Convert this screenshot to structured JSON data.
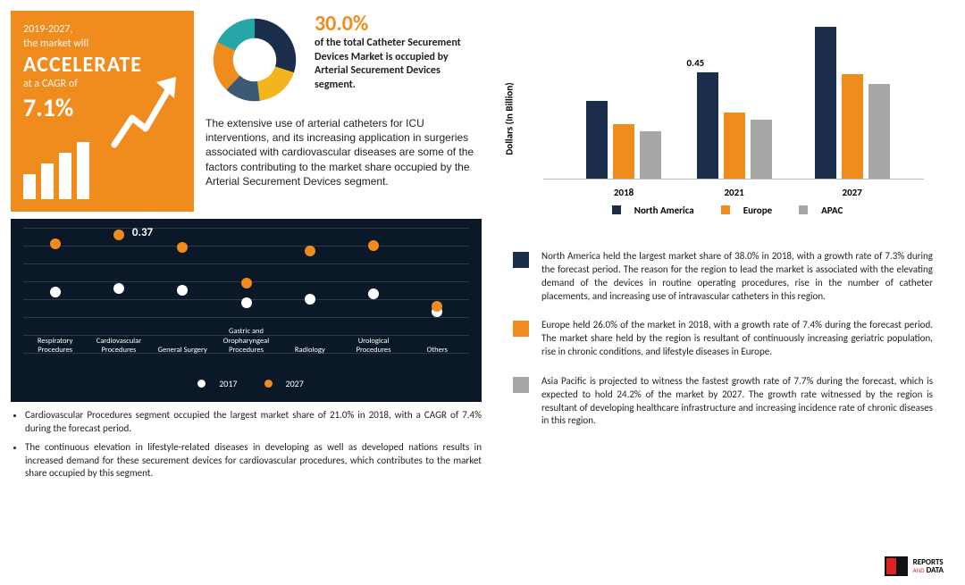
{
  "colors": {
    "orange": "#f08b1e",
    "navy": "#1a2d4a",
    "teal": "#26a6a6",
    "gold": "#f2b51e",
    "steel": "#3c5a73",
    "grey": "#a6a6a6",
    "white": "#ffffff",
    "darkbg": "#0a1828"
  },
  "cagr": {
    "years": "2019-2027,",
    "line1": "the market will",
    "big": "ACCELERATE",
    "line2": "at a CAGR of",
    "pct": "7.1%",
    "bars": [
      28,
      40,
      52,
      64
    ]
  },
  "donut": {
    "pct": "30.0%",
    "headline": "of the total Catheter Securement Devices Market is occupied by Arterial Securement Devices segment.",
    "desc": "The extensive use of arterial catheters for ICU interventions, and its increasing application in surgeries associated with cardiovascular diseases are some of the factors contributing to the market share occupied by the Arterial Securement Devices segment.",
    "slices": [
      {
        "color": "#1a2d4a",
        "pct": 30
      },
      {
        "color": "#f2b51e",
        "pct": 18
      },
      {
        "color": "#3c5a73",
        "pct": 14
      },
      {
        "color": "#f08b1e",
        "pct": 20
      },
      {
        "color": "#26a6a6",
        "pct": 18
      }
    ]
  },
  "dotplot": {
    "gridlines": [
      0,
      20,
      40,
      60,
      80,
      100,
      120,
      140
    ],
    "categories": [
      "Respiratory Procedures",
      "Cardiovascular Procedures",
      "General Surgery",
      "Gastric and Oropharyngeal Procedures",
      "Radiology",
      "Urological Procedures",
      "Others"
    ],
    "series": [
      {
        "name": "2017",
        "color": "#ffffff",
        "y": [
          72,
          68,
          70,
          84,
          80,
          74,
          94
        ]
      },
      {
        "name": "2027",
        "color": "#f08b1e",
        "y": [
          18,
          8,
          22,
          62,
          26,
          20,
          88
        ]
      }
    ],
    "callout": {
      "cat": 1,
      "value": "0.37"
    }
  },
  "dot_bullets": [
    "Cardiovascular Procedures segment occupied the largest market share of 21.0% in 2018, with a CAGR of 7.4% during the forecast period.",
    "The continuous elevation in lifestyle-related diseases in developing as well as developed nations results in increased demand for these securement devices for cardiovascular procedures, which contributes to the market share occupied by this segment."
  ],
  "barchart": {
    "ylabel": "Dollars (In Billion)",
    "groups": [
      "2018",
      "2021",
      "2027"
    ],
    "series": [
      {
        "name": "North America",
        "color": "#1a2d4a",
        "values": [
          0.33,
          0.45,
          0.64
        ]
      },
      {
        "name": "Europe",
        "color": "#f08b1e",
        "values": [
          0.23,
          0.28,
          0.44
        ]
      },
      {
        "name": "APAC",
        "color": "#a6a6a6",
        "values": [
          0.2,
          0.25,
          0.4
        ]
      }
    ],
    "ymax": 0.66,
    "callout": {
      "group": 1,
      "series": 0,
      "label": "0.45"
    }
  },
  "regions": [
    {
      "color": "#1a2d4a",
      "text": "North America held the largest market share of 38.0% in 2018, with a growth rate of 7.3% during the forecast period.  The reason for the region to lead the market is associated with the elevating demand of the devices in routine operating procedures, rise in the number of catheter placements, and increasing use of intravascular catheters in this region."
    },
    {
      "color": "#f08b1e",
      "text": "Europe held 26.0% of the market in 2018, with a growth rate of 7.4% during the forecast period. The market share held by the region is resultant of continuously increasing geriatric population, rise in chronic conditions, and lifestyle diseases in Europe."
    },
    {
      "color": "#a6a6a6",
      "text": "Asia Pacific is projected to witness the fastest growth rate of 7.7% during the forecast, which is expected to hold 24.2% of the market by 2027. The growth rate witnessed by the region is resultant of developing healthcare infrastructure and increasing incidence rate of chronic diseases in this region."
    }
  ],
  "logo": {
    "top": "REPORTS",
    "bottom": "DATA",
    "and": "AND"
  }
}
